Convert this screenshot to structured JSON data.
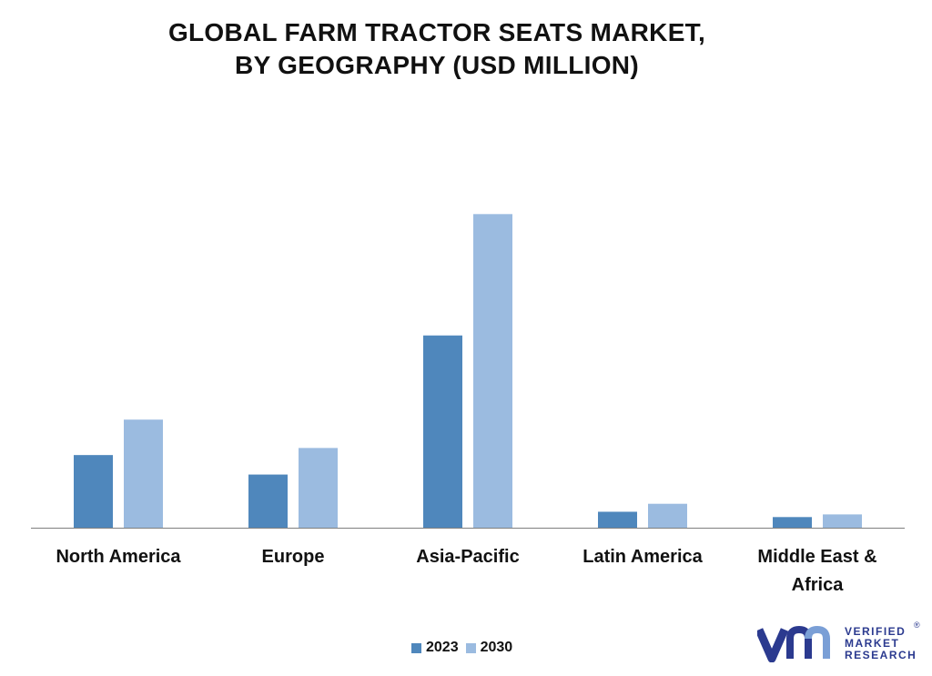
{
  "title_line1": "GLOBAL FARM TRACTOR SEATS MARKET,",
  "title_line2": "BY GEOGRAPHY (USD MILLION)",
  "colors": {
    "2023": "#4f87bc",
    "2030": "#9bbbe0",
    "axis": "#7f7f7f"
  },
  "legend": [
    {
      "label": "2023"
    },
    {
      "label": "2030"
    }
  ],
  "logo": {
    "line1": "VERIFIED",
    "line2": "MARKET",
    "line3": "RESEARCH",
    "mark": "®"
  },
  "chart_data": {
    "type": "bar",
    "title": "GLOBAL FARM TRACTOR SEATS MARKET, BY GEOGRAPHY (USD MILLION)",
    "categories": [
      [
        "North America"
      ],
      [
        "Europe"
      ],
      [
        "Asia-Pacific"
      ],
      [
        "Latin America"
      ],
      [
        "Middle East &",
        "Africa"
      ]
    ],
    "series": [
      {
        "name": "2023",
        "values": [
          82,
          60,
          217,
          18,
          12
        ]
      },
      {
        "name": "2030",
        "values": [
          122,
          90,
          354,
          27,
          15
        ]
      }
    ],
    "ylim": [
      0,
      380
    ],
    "grid": false,
    "legend_position": "bottom"
  }
}
